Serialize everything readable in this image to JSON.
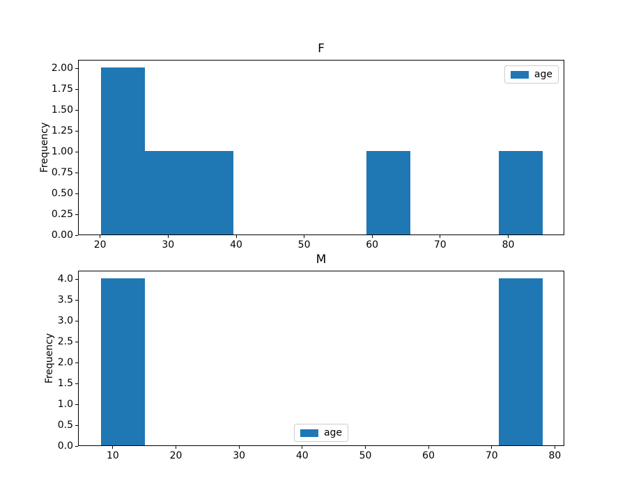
{
  "chart_data": [
    {
      "type": "histogram",
      "title": "F",
      "xlabel": "",
      "ylabel": "Frequency",
      "legend": {
        "label": "age",
        "position": "upper-right"
      },
      "bar_color": "#1f77b4",
      "bin_edges": [
        20,
        26.5,
        33,
        39.5,
        46,
        52.5,
        59,
        65.5,
        72,
        78.5,
        85
      ],
      "counts": [
        2,
        1,
        1,
        0,
        0,
        0,
        1,
        0,
        0,
        1
      ],
      "xlim": [
        16.75,
        88.25
      ],
      "ylim": [
        0,
        2.1
      ],
      "x_tick_values": [
        20,
        30,
        40,
        50,
        60,
        70,
        80
      ],
      "x_tick_labels": [
        "20",
        "30",
        "40",
        "50",
        "60",
        "70",
        "80"
      ],
      "y_tick_values": [
        0,
        0.25,
        0.5,
        0.75,
        1.0,
        1.25,
        1.5,
        1.75,
        2.0
      ],
      "y_tick_labels": [
        "0.00",
        "0.25",
        "0.50",
        "0.75",
        "1.00",
        "1.25",
        "1.50",
        "1.75",
        "2.00"
      ],
      "grid": false
    },
    {
      "type": "histogram",
      "title": "M",
      "xlabel": "",
      "ylabel": "Frequency",
      "legend": {
        "label": "age",
        "position": "lower-center"
      },
      "bar_color": "#1f77b4",
      "bin_edges": [
        8,
        15,
        22,
        29,
        36,
        43,
        50,
        57,
        64,
        71,
        78
      ],
      "counts": [
        4,
        0,
        0,
        0,
        0,
        0,
        0,
        0,
        0,
        4
      ],
      "xlim": [
        4.5,
        81.5
      ],
      "ylim": [
        0,
        4.2
      ],
      "x_tick_values": [
        10,
        20,
        30,
        40,
        50,
        60,
        70,
        80
      ],
      "x_tick_labels": [
        "10",
        "20",
        "30",
        "40",
        "50",
        "60",
        "70",
        "80"
      ],
      "y_tick_values": [
        0,
        0.5,
        1.0,
        1.5,
        2.0,
        2.5,
        3.0,
        3.5,
        4.0
      ],
      "y_tick_labels": [
        "0.0",
        "0.5",
        "1.0",
        "1.5",
        "2.0",
        "2.5",
        "3.0",
        "3.5",
        "4.0"
      ],
      "grid": false
    }
  ],
  "colors": {
    "bar": "#1f77b4",
    "spine": "#000000",
    "legend_border": "#cccccc",
    "background": "#ffffff"
  }
}
